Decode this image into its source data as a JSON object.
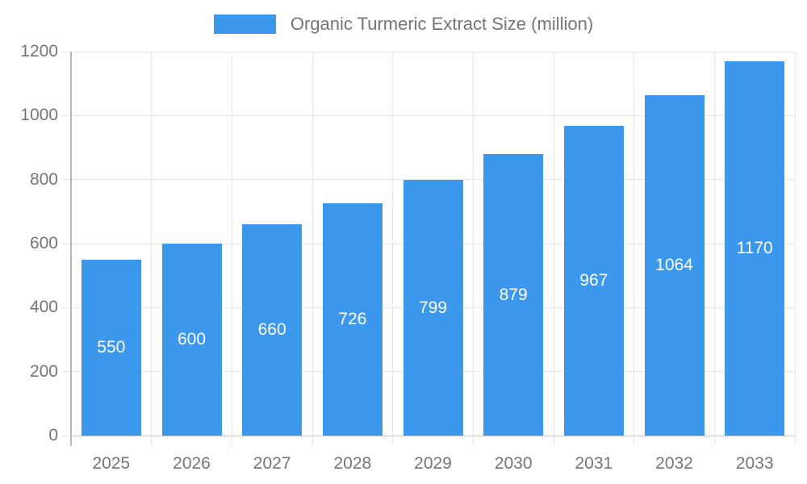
{
  "chart_data": {
    "type": "bar",
    "legend": "Organic Turmeric Extract Size (million)",
    "categories": [
      "2025",
      "2026",
      "2027",
      "2028",
      "2029",
      "2030",
      "2031",
      "2032",
      "2033"
    ],
    "values": [
      550,
      600,
      660,
      726,
      799,
      879,
      967,
      1064,
      1170
    ],
    "value_labels": [
      "550",
      "600",
      "660",
      "726",
      "799",
      "879",
      "967",
      "1064",
      "1170"
    ],
    "xlabel": "",
    "ylabel": "",
    "ylim": [
      0,
      1200
    ],
    "yticks": [
      0,
      200,
      400,
      600,
      800,
      1000,
      1200
    ],
    "ytick_labels": [
      "0",
      "200",
      "400",
      "600",
      "800",
      "1000",
      "1200"
    ],
    "grid": "on",
    "legend_position": "top-center",
    "bar_color": "#3b98ec",
    "bar_label_color": "#ffffff",
    "axis_text_color": "#757575",
    "gridline_color": "#e6e6e6",
    "axis_line_color": "#b3b3b3",
    "background_color": "#ffffff"
  }
}
